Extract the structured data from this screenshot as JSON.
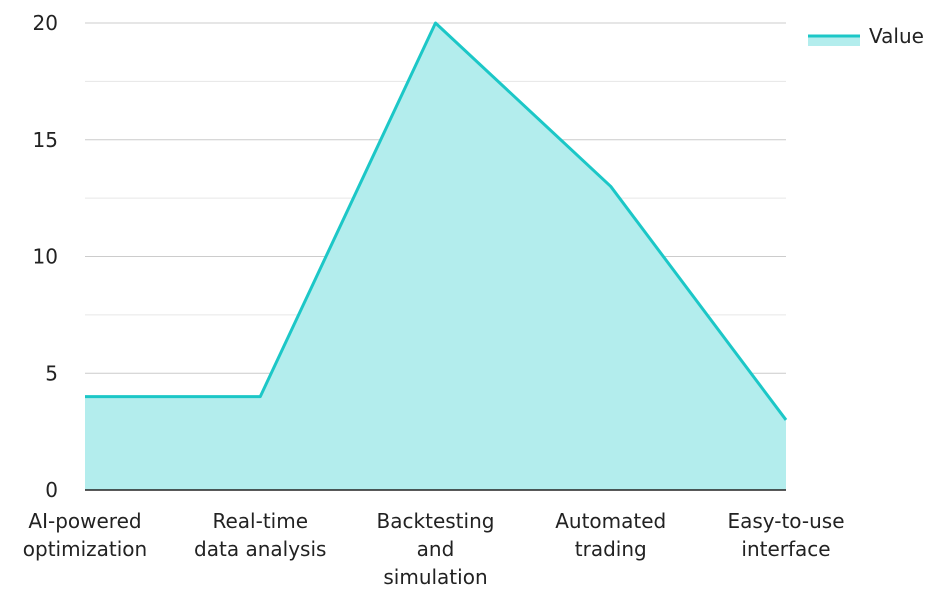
{
  "chart_data": {
    "type": "area",
    "categories": [
      [
        "AI-powered",
        "optimization"
      ],
      [
        "Real-time",
        "data analysis"
      ],
      [
        "Backtesting",
        "and",
        "simulation"
      ],
      [
        "Automated",
        "trading"
      ],
      [
        "Easy-to-use",
        "interface"
      ]
    ],
    "series": [
      {
        "name": "Value",
        "values": [
          4,
          4,
          20,
          13,
          3
        ]
      }
    ],
    "ylim": [
      0,
      20
    ],
    "yticks": [
      0,
      5,
      10,
      15,
      20
    ],
    "grid": true,
    "legend": "top-right",
    "colors": {
      "line": "#1cc7c7",
      "fill": "#b3eded",
      "grid": "#cccccc",
      "axis": "#222222"
    }
  }
}
